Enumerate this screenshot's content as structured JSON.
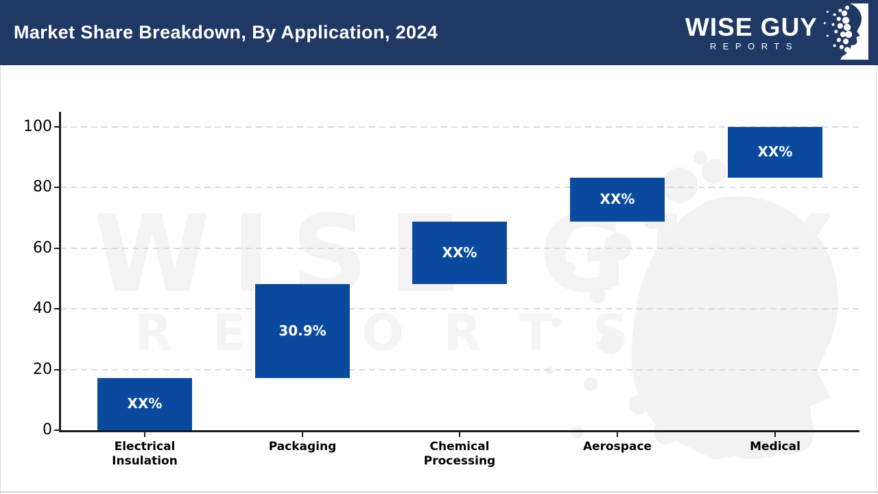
{
  "header": {
    "title": "Market Share Breakdown, By Application, 2024",
    "bg_color": "#1f3864",
    "logo": {
      "line1": "WISE GUY",
      "line2": "REPORTS"
    }
  },
  "watermark": {
    "line1": "WISE GUY",
    "line2": "REPORTS"
  },
  "chart_data": {
    "type": "bar",
    "variant": "waterfall",
    "title": "Market Share Breakdown, By Application, 2024",
    "xlabel": "",
    "ylabel": "",
    "categories": [
      [
        "Electrical",
        "Insulation"
      ],
      [
        "Packaging"
      ],
      [
        "Chemical",
        "Processing"
      ],
      [
        "Aerospace"
      ],
      [
        "Medical"
      ]
    ],
    "segments": [
      {
        "name": "Electrical Insulation",
        "start": 0,
        "end": 17.2,
        "value": 17.2,
        "label": "XX%"
      },
      {
        "name": "Packaging",
        "start": 17.2,
        "end": 48.1,
        "value": 30.9,
        "label": "30.9%"
      },
      {
        "name": "Chemical Processing",
        "start": 48.1,
        "end": 68.8,
        "value": 20.7,
        "label": "XX%"
      },
      {
        "name": "Aerospace",
        "start": 68.8,
        "end": 83.3,
        "value": 14.5,
        "label": "XX%"
      },
      {
        "name": "Medical",
        "start": 83.3,
        "end": 100.0,
        "value": 16.7,
        "label": "XX%"
      }
    ],
    "y_ticks": [
      0,
      20,
      40,
      60,
      80,
      100
    ],
    "ylim": [
      0,
      105
    ],
    "bar_color": "#0a4a9e",
    "grid": "horizontal-dashed",
    "legend_position": "none"
  }
}
